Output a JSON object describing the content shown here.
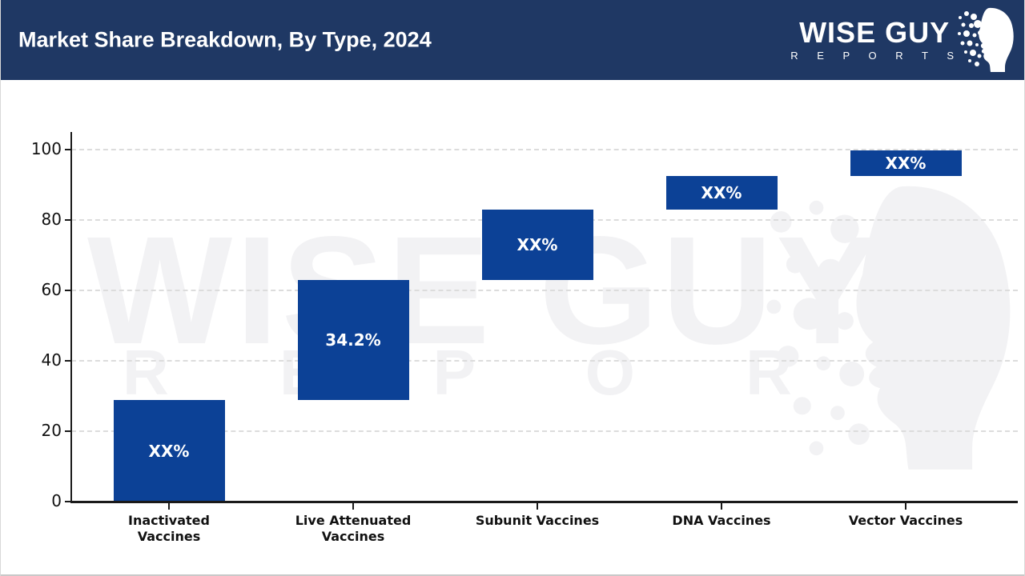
{
  "header": {
    "title": "Market Share Breakdown, By Type, 2024",
    "background_color": "#1f3864",
    "brand": {
      "name": "WISE GUY",
      "sub": "R E P O R T S"
    }
  },
  "watermark": {
    "line1": "WISE GUY",
    "line2": "R E P O R T S"
  },
  "chart_data": {
    "type": "bar",
    "subtype": "waterfall",
    "title": "Market Share Breakdown, By Type, 2024",
    "xlabel": "",
    "ylabel": "",
    "ylim": [
      0,
      105
    ],
    "yticks": [
      0,
      20,
      40,
      60,
      80,
      100
    ],
    "grid": "horizontal-dashed",
    "legend": "none",
    "categories": [
      "Inactivated Vaccines",
      "Live Attenuated Vaccines",
      "Subunit Vaccines",
      "DNA Vaccines",
      "Vector Vaccines"
    ],
    "segments": [
      {
        "start": 0,
        "end": 28.8,
        "value_label": "XX%"
      },
      {
        "start": 28.8,
        "end": 63.0,
        "value_label": "34.2%"
      },
      {
        "start": 63.0,
        "end": 83.0,
        "value_label": "XX%"
      },
      {
        "start": 83.0,
        "end": 92.5,
        "value_label": "XX%"
      },
      {
        "start": 92.5,
        "end": 99.7,
        "value_label": "XX%"
      }
    ],
    "colors": {
      "bar": "#0c4196",
      "value_label": "#ffffff",
      "grid": "#dcdcdc",
      "axis": "#1a1a1a",
      "tick_label": "#111111"
    }
  }
}
